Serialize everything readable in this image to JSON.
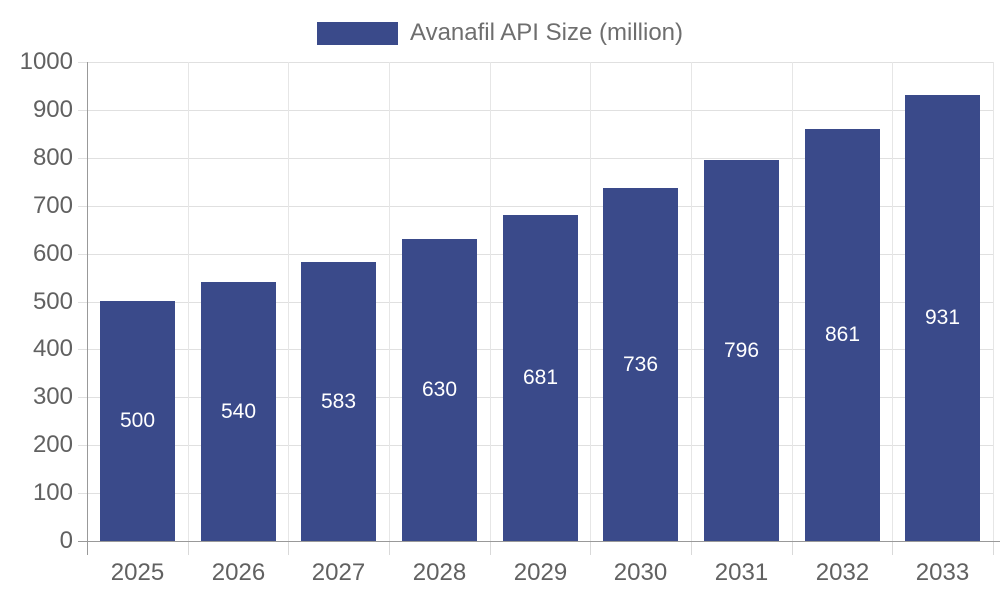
{
  "legend": {
    "label": "Avanafil API Size (million)"
  },
  "chart_data": {
    "type": "bar",
    "title": "Avanafil API Size (million)",
    "series_name": "Avanafil API Size (million)",
    "categories": [
      "2025",
      "2026",
      "2027",
      "2028",
      "2029",
      "2030",
      "2031",
      "2032",
      "2033"
    ],
    "values": [
      500,
      540,
      583,
      630,
      681,
      736,
      796,
      861,
      931
    ],
    "value_labels": [
      "500",
      "540",
      "583",
      "630",
      "681",
      "736",
      "796",
      "861",
      "931"
    ],
    "xlabel": "",
    "ylabel": "",
    "ylim": [
      0,
      1000
    ],
    "ytick_step": 100,
    "ytick_labels": [
      "0",
      "100",
      "200",
      "300",
      "400",
      "500",
      "600",
      "700",
      "800",
      "900",
      "1000"
    ],
    "grid": true,
    "legend_position": "top-center",
    "bar_color": "#3a4a8a",
    "value_label_color": "#ffffff",
    "axis_line_color": "#999999",
    "grid_color": "#e0e0e0",
    "tick_label_color": "#616161",
    "legend_text_color": "#6e6e6e"
  }
}
